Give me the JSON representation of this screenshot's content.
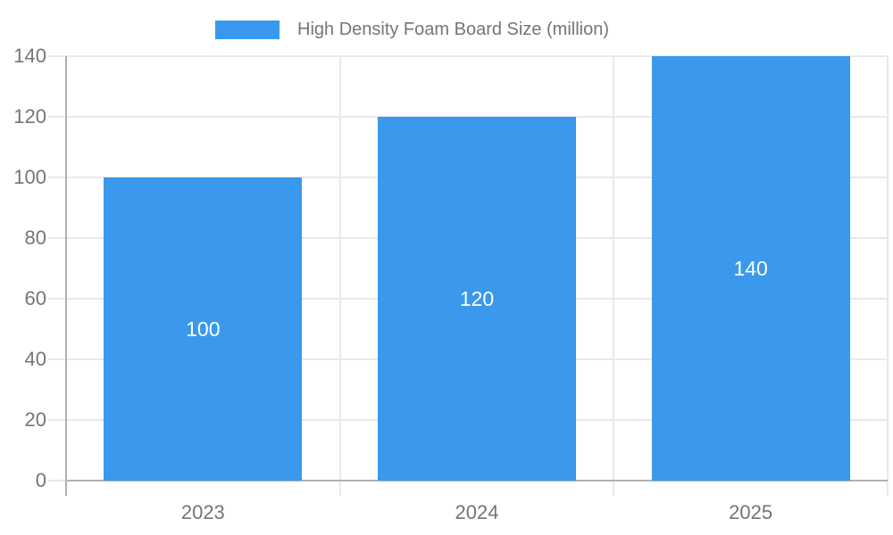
{
  "chart_data": {
    "type": "bar",
    "title": "",
    "legend": {
      "label": "High Density Foam Board Size (million)",
      "position": "top"
    },
    "categories": [
      "2023",
      "2024",
      "2025"
    ],
    "series": [
      {
        "name": "High Density Foam Board Size (million)",
        "values": [
          100,
          120,
          140
        ]
      }
    ],
    "data_labels": [
      "100",
      "120",
      "140"
    ],
    "xlabel": "",
    "ylabel": "",
    "ylim": [
      0,
      140
    ],
    "yticks": [
      0,
      20,
      40,
      60,
      80,
      100,
      120,
      140
    ],
    "grid": true,
    "colors": {
      "bar": "#3a99ec",
      "axis_text": "#757575",
      "grid_line": "#e9e9e9",
      "axis_line": "#b1b1b1",
      "data_label": "#ffffff",
      "background": "#ffffff"
    }
  }
}
